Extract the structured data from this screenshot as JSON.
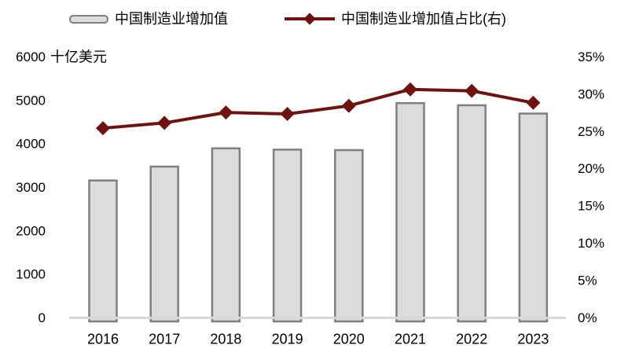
{
  "chart_data": {
    "type": "combo",
    "categories": [
      "2016",
      "2017",
      "2018",
      "2019",
      "2020",
      "2021",
      "2022",
      "2023"
    ],
    "series": [
      {
        "name": "中国制造业增加值",
        "chart_type": "bar",
        "axis": "left",
        "values": [
          3150,
          3470,
          3890,
          3860,
          3850,
          4930,
          4880,
          4690
        ]
      },
      {
        "name": "中国制造业增加值占比(右)",
        "chart_type": "line",
        "marker": "diamond",
        "axis": "right",
        "values": [
          25.4,
          26.1,
          27.5,
          27.3,
          28.4,
          30.6,
          30.4,
          28.8
        ]
      }
    ],
    "left_axis": {
      "unit_label": "十亿美元",
      "min": 0,
      "max": 6000,
      "step": 1000,
      "tick_labels": [
        "0",
        "1000",
        "2000",
        "3000",
        "4000",
        "5000",
        "6000"
      ]
    },
    "right_axis": {
      "min": 0,
      "max": 35,
      "step": 5,
      "tick_labels": [
        "0%",
        "5%",
        "10%",
        "15%",
        "20%",
        "25%",
        "30%",
        "35%"
      ]
    },
    "grid": false,
    "legend_position": "top",
    "title": "",
    "xlabel": "",
    "ylabel": "十亿美元",
    "colors": {
      "bar_fill": "#dcdcdc",
      "bar_border": "#7f7f7f",
      "line": "#6e1310",
      "axis_line": "#d9d9d9",
      "text": "#000000"
    }
  }
}
